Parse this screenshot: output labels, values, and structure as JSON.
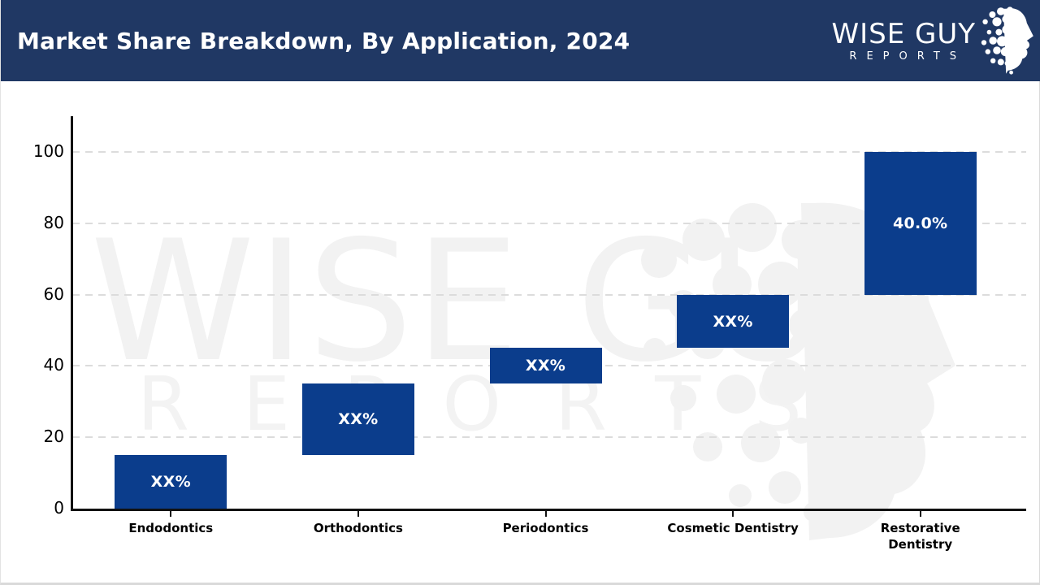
{
  "header": {
    "title": "Market Share Breakdown, By Application, 2024",
    "bg_color": "#203864",
    "logo": {
      "line1": "WISE GUY",
      "line2": "REPORTS"
    }
  },
  "watermark": {
    "line1": "WISE GUY",
    "line2": "REPORTS"
  },
  "chart_data": {
    "type": "bar",
    "subtype": "waterfall",
    "title": "Market Share Breakdown, By Application, 2024",
    "categories": [
      "Endodontics",
      "Orthodontics",
      "Periodontics",
      "Cosmetic Dentistry",
      "Restorative Dentistry"
    ],
    "category_lines": [
      [
        "Endodontics"
      ],
      [
        "Orthodontics"
      ],
      [
        "Periodontics"
      ],
      [
        "Cosmetic Dentistry"
      ],
      [
        "Restorative",
        "Dentistry"
      ]
    ],
    "segments": [
      {
        "category": "Endodontics",
        "start": 0,
        "end": 15,
        "label": "XX%"
      },
      {
        "category": "Orthodontics",
        "start": 15,
        "end": 35,
        "label": "XX%"
      },
      {
        "category": "Periodontics",
        "start": 35,
        "end": 45,
        "label": "XX%"
      },
      {
        "category": "Cosmetic Dentistry",
        "start": 45,
        "end": 60,
        "label": "XX%"
      },
      {
        "category": "Restorative Dentistry",
        "start": 60,
        "end": 100,
        "label": "40.0%"
      }
    ],
    "yticks": [
      0,
      20,
      40,
      60,
      80,
      100
    ],
    "ylim": [
      0,
      105
    ],
    "xlabel": "",
    "ylabel": "",
    "grid": "horizontal-dashed",
    "legend": "none",
    "bar_color": "#0B3D8C",
    "bar_label_color": "#FFFFFF",
    "grid_color": "#DCDCDC"
  }
}
